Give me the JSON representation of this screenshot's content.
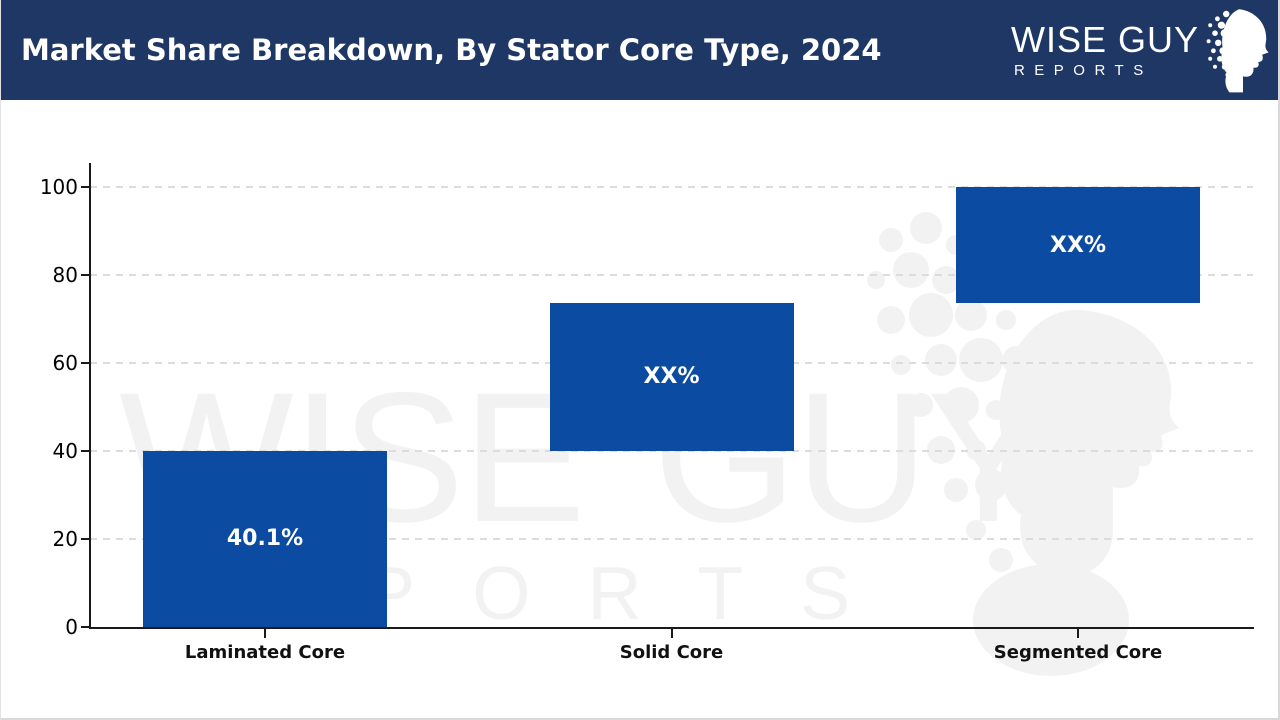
{
  "header": {
    "title": "Market Share Breakdown, By Stator Core Type, 2024",
    "logo": {
      "wordmark": "WISE GUY",
      "subtext": "REPORTS"
    },
    "colors": {
      "background": "#1e3765",
      "text": "#ffffff"
    }
  },
  "watermark": {
    "line1": "WISE GUY",
    "line2": "REPORTS"
  },
  "chart_data": {
    "type": "bar",
    "subtype": "waterfall",
    "title": "Market Share Breakdown, By Stator Core Type, 2024",
    "categories": [
      "Laminated Core",
      "Solid Core",
      "Segmented Core"
    ],
    "bars": [
      {
        "category": "Laminated Core",
        "from": 0,
        "to": 40.1,
        "label": "40.1%"
      },
      {
        "category": "Solid Core",
        "from": 40.1,
        "to": 73.6,
        "label": "XX%"
      },
      {
        "category": "Segmented Core",
        "from": 73.6,
        "to": 100,
        "label": "XX%"
      }
    ],
    "xlabel": "",
    "ylabel": "",
    "ylim": [
      0,
      100
    ],
    "yticks": [
      0,
      20,
      40,
      60,
      80,
      100
    ],
    "grid": "horizontal-dashed",
    "legend": "none",
    "bar_color": "#0b4ba1",
    "bar_label_color": "#ffffff",
    "grid_color": "#dcdcdc",
    "axis_color": "#1a1a1a",
    "watermark_color": "#f2f2f2"
  }
}
